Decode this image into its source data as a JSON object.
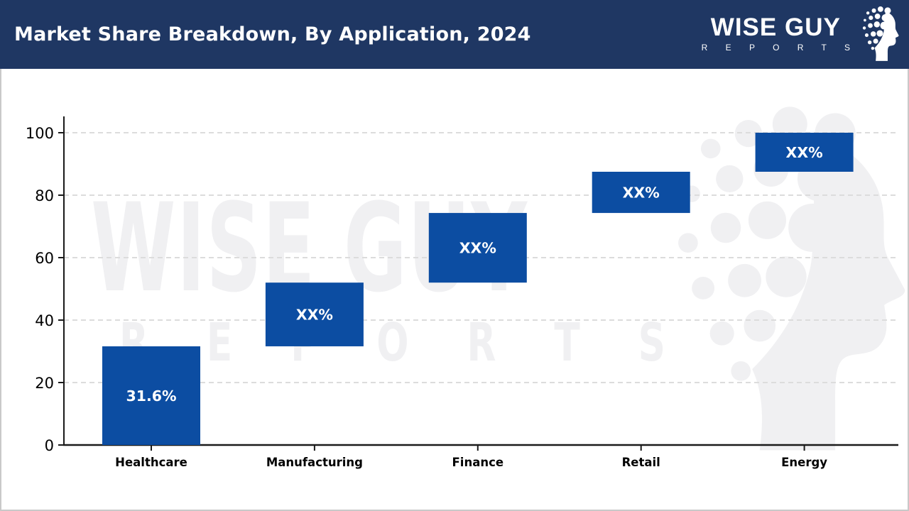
{
  "header": {
    "title": "Market Share Breakdown, By Application, 2024",
    "logo": {
      "line1": "WISE GUY",
      "line2": "R E P O R T S"
    }
  },
  "watermark": {
    "line1": "WISE GUY",
    "line2": "R E P O R T S"
  },
  "colors": {
    "header_bg": "#1f3763",
    "bar": "#0c4da2",
    "bar_label": "#ffffff",
    "grid": "#dcdcdc",
    "axis": "#1a1a1a",
    "text": "#000000",
    "border": "#c9c9c9",
    "watermark": "#f0f0f2"
  },
  "chart_data": {
    "type": "bar",
    "subtype": "waterfall",
    "title": "Market Share Breakdown, By Application, 2024",
    "categories": [
      "Healthcare",
      "Manufacturing",
      "Finance",
      "Retail",
      "Energy"
    ],
    "segments": [
      {
        "category": "Healthcare",
        "start": 0,
        "end": 31.6,
        "label": "31.6%"
      },
      {
        "category": "Manufacturing",
        "start": 31.6,
        "end": 52.0,
        "label": "XX%"
      },
      {
        "category": "Finance",
        "start": 52.0,
        "end": 74.3,
        "label": "XX%"
      },
      {
        "category": "Retail",
        "start": 74.3,
        "end": 87.5,
        "label": "XX%"
      },
      {
        "category": "Energy",
        "start": 87.5,
        "end": 100.0,
        "label": "XX%"
      }
    ],
    "ylim": [
      0,
      100
    ],
    "yticks": [
      0,
      20,
      40,
      60,
      80,
      100
    ],
    "xlabel": "",
    "ylabel": "",
    "grid": "horizontal-dashed",
    "legend": "none"
  }
}
